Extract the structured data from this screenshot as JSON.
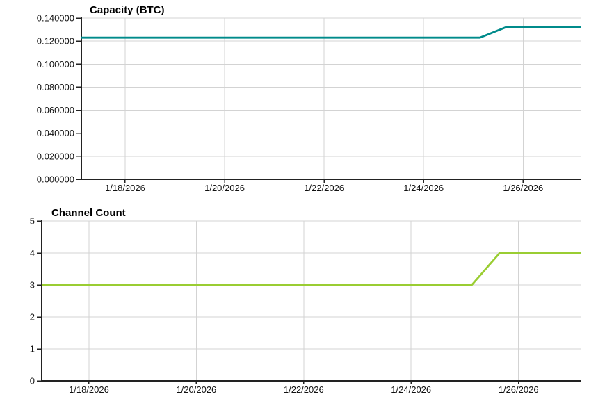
{
  "page": {
    "background": "#ffffff"
  },
  "colors": {
    "capacity_line": "#008b8b",
    "channel_line": "#9acd32",
    "gridline": "#d3d3d3",
    "axis": "#222222",
    "tick_text": "#111111",
    "title_text": "#000000"
  },
  "chart_data": [
    {
      "type": "line",
      "title": "Capacity (BTC)",
      "xlabel": "",
      "ylabel": "",
      "x_unit": "day of January 2026 (fractional day-of-month)",
      "x_domain": [
        17.12,
        27.17
      ],
      "y_domain": [
        0,
        0.14
      ],
      "grid": true,
      "legend": "none",
      "x_ticks": [
        {
          "t": 18,
          "label": "1/18/2026"
        },
        {
          "t": 20,
          "label": "1/20/2026"
        },
        {
          "t": 22,
          "label": "1/22/2026"
        },
        {
          "t": 24,
          "label": "1/24/2026"
        },
        {
          "t": 26,
          "label": "1/26/2026"
        }
      ],
      "y_ticks": [
        {
          "v": 0.0,
          "label": "0.000000"
        },
        {
          "v": 0.02,
          "label": "0.020000"
        },
        {
          "v": 0.04,
          "label": "0.040000"
        },
        {
          "v": 0.06,
          "label": "0.060000"
        },
        {
          "v": 0.08,
          "label": "0.080000"
        },
        {
          "v": 0.1,
          "label": "0.100000"
        },
        {
          "v": 0.12,
          "label": "0.120000"
        },
        {
          "v": 0.14,
          "label": "0.140000"
        }
      ],
      "series": [
        {
          "name": "Capacity (BTC)",
          "slug": "capacity",
          "color": "#008b8b",
          "points": [
            [
              17.12,
              0.123
            ],
            [
              25.13,
              0.123
            ],
            [
              25.65,
              0.132
            ],
            [
              27.17,
              0.132
            ]
          ],
          "summary": "flat at ~0.123 BTC, rises during 1/25/2026 to ~0.132 BTC, then flat to right edge"
        }
      ]
    },
    {
      "type": "line",
      "title": "Channel Count",
      "xlabel": "",
      "ylabel": "",
      "x_unit": "day of January 2026 (fractional day-of-month)",
      "x_domain": [
        17.12,
        27.17
      ],
      "y_domain": [
        0,
        5
      ],
      "grid": true,
      "legend": "none",
      "x_ticks": [
        {
          "t": 18,
          "label": "1/18/2026"
        },
        {
          "t": 20,
          "label": "1/20/2026"
        },
        {
          "t": 22,
          "label": "1/22/2026"
        },
        {
          "t": 24,
          "label": "1/24/2026"
        },
        {
          "t": 26,
          "label": "1/26/2026"
        }
      ],
      "y_ticks": [
        {
          "v": 0,
          "label": "0"
        },
        {
          "v": 1,
          "label": "1"
        },
        {
          "v": 2,
          "label": "2"
        },
        {
          "v": 3,
          "label": "3"
        },
        {
          "v": 4,
          "label": "4"
        },
        {
          "v": 5,
          "label": "5"
        }
      ],
      "series": [
        {
          "name": "Channel Count",
          "slug": "channel-count",
          "color": "#9acd32",
          "points": [
            [
              17.12,
              3
            ],
            [
              25.13,
              3
            ],
            [
              25.65,
              4
            ],
            [
              27.17,
              4
            ]
          ],
          "summary": "flat at 3 channels, rises during 1/25/2026 to 4 channels, then flat to right edge"
        }
      ]
    }
  ]
}
